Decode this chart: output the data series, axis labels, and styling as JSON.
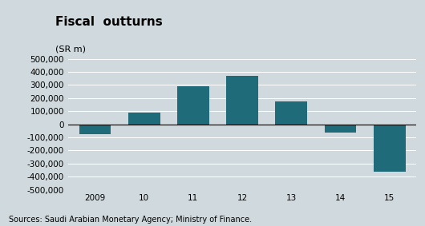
{
  "title": "Fiscal  outturns",
  "ylabel": "(SR m)",
  "categories": [
    "2009",
    "10",
    "11",
    "12",
    "13",
    "14",
    "15"
  ],
  "values": [
    -75000,
    90000,
    290000,
    370000,
    175000,
    -65000,
    -360000
  ],
  "bar_color": "#1f6b7a",
  "background_color": "#d0d9dd",
  "ylim": [
    -500000,
    500000
  ],
  "yticks": [
    -500000,
    -400000,
    -300000,
    -200000,
    -100000,
    0,
    100000,
    200000,
    300000,
    400000,
    500000
  ],
  "source_text": "Sources: Saudi Arabian Monetary Agency; Ministry of Finance.",
  "title_fontsize": 11,
  "label_fontsize": 8,
  "tick_fontsize": 7.5,
  "source_fontsize": 7
}
